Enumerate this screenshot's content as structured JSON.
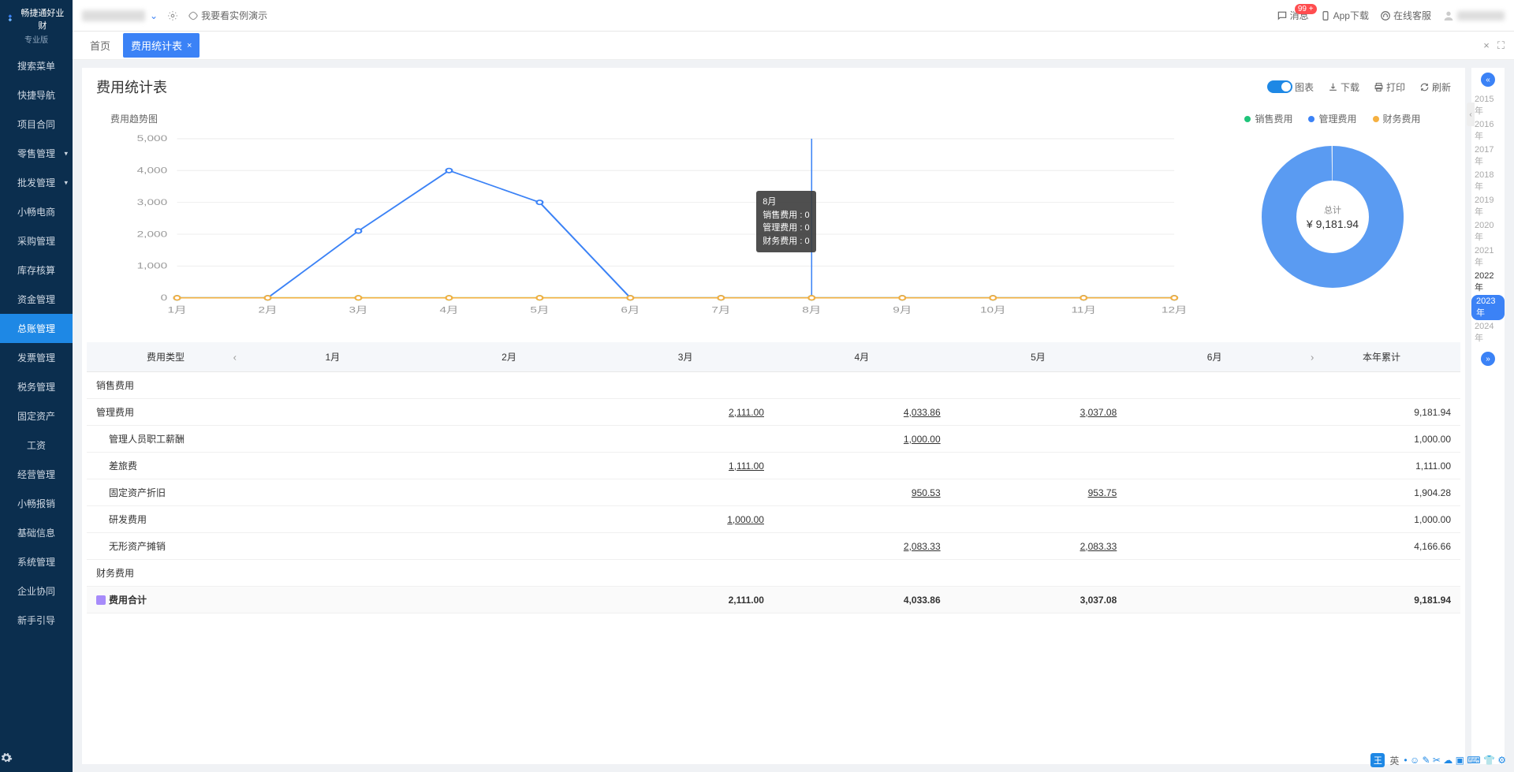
{
  "brand": {
    "name": "畅捷通好业财",
    "edition": "专业版"
  },
  "topbar": {
    "demo_label": "我要看实例演示",
    "msg": "消息",
    "msg_badge": "99 +",
    "app": "App下载",
    "service": "在线客服"
  },
  "sidebar": {
    "items": [
      {
        "label": "搜索菜单",
        "caret": false
      },
      {
        "label": "快捷导航",
        "caret": false
      },
      {
        "label": "项目合同",
        "caret": false
      },
      {
        "label": "零售管理",
        "caret": true
      },
      {
        "label": "批发管理",
        "caret": true
      },
      {
        "label": "小畅电商",
        "caret": false
      },
      {
        "label": "采购管理",
        "caret": false
      },
      {
        "label": "库存核算",
        "caret": false
      },
      {
        "label": "资金管理",
        "caret": false
      },
      {
        "label": "总账管理",
        "caret": false,
        "active": true
      },
      {
        "label": "发票管理",
        "caret": false
      },
      {
        "label": "税务管理",
        "caret": false
      },
      {
        "label": "固定资产",
        "caret": false
      },
      {
        "label": "工资",
        "caret": false
      },
      {
        "label": "经营管理",
        "caret": false
      },
      {
        "label": "小畅报销",
        "caret": false
      },
      {
        "label": "基础信息",
        "caret": false
      },
      {
        "label": "系统管理",
        "caret": false
      },
      {
        "label": "企业协同",
        "caret": false
      },
      {
        "label": "新手引导",
        "caret": false
      }
    ]
  },
  "tabs": {
    "home": "首页",
    "current": "费用统计表"
  },
  "page": {
    "title": "费用统计表",
    "actions": {
      "chart": "图表",
      "download": "下载",
      "print": "打印",
      "refresh": "刷新"
    }
  },
  "line_chart": {
    "title": "费用趋势图",
    "x_labels": [
      "1月",
      "2月",
      "3月",
      "4月",
      "5月",
      "6月",
      "7月",
      "8月",
      "9月",
      "10月",
      "11月",
      "12月"
    ],
    "y_ticks": [
      0,
      1000,
      2000,
      3000,
      4000,
      5000
    ],
    "ylim": [
      0,
      5000
    ],
    "series": [
      {
        "name": "销售费用",
        "color": "#1fc47a",
        "values": [
          0,
          0,
          0,
          0,
          0,
          0,
          0,
          0,
          0,
          0,
          0,
          0
        ]
      },
      {
        "name": "管理费用",
        "color": "#3b82f6",
        "values": [
          0,
          0,
          2100,
          4000,
          3000,
          0,
          0,
          0,
          0,
          0,
          0,
          0
        ]
      },
      {
        "name": "财务费用",
        "color": "#f5b041",
        "values": [
          0,
          0,
          0,
          0,
          0,
          0,
          0,
          0,
          0,
          0,
          0,
          0
        ]
      }
    ],
    "tooltip": {
      "month": "8月",
      "lines": [
        "销售费用 : 0",
        "管理费用 : 0",
        "财务费用 : 0"
      ],
      "x_index": 7
    },
    "grid_color": "#eeeeee",
    "axis_color": "#cccccc"
  },
  "legend": [
    {
      "label": "销售费用",
      "color": "#1fc47a"
    },
    {
      "label": "管理费用",
      "color": "#3b82f6"
    },
    {
      "label": "财务费用",
      "color": "#f5b041"
    }
  ],
  "donut": {
    "center_label": "总计",
    "center_value": "¥ 9,181.94",
    "color": "#5a9bf2",
    "bg": "#e8eef7"
  },
  "years": {
    "list": [
      "2015年",
      "2016年",
      "2017年",
      "2018年",
      "2019年",
      "2020年",
      "2021年",
      "2022年",
      "2023年",
      "2024年"
    ],
    "bold": "2022年",
    "active": "2023年"
  },
  "table": {
    "type_header": "费用类型",
    "months": [
      "1月",
      "2月",
      "3月",
      "4月",
      "5月",
      "6月"
    ],
    "total_header": "本年累计",
    "rows": [
      {
        "label": "销售费用",
        "cells": [
          "",
          "",
          "",
          "",
          "",
          ""
        ],
        "total": "",
        "link": [
          false,
          false,
          false,
          false,
          false,
          false
        ]
      },
      {
        "label": "管理费用",
        "cells": [
          "",
          "",
          "2,111.00",
          "4,033.86",
          "3,037.08",
          ""
        ],
        "total": "9,181.94",
        "link": [
          false,
          false,
          true,
          true,
          true,
          false
        ]
      },
      {
        "label": "管理人员职工薪酬",
        "sub": true,
        "cells": [
          "",
          "",
          "",
          "1,000.00",
          "",
          ""
        ],
        "total": "1,000.00",
        "link": [
          false,
          false,
          false,
          true,
          false,
          false
        ]
      },
      {
        "label": "差旅费",
        "sub": true,
        "cells": [
          "",
          "",
          "1,111.00",
          "",
          "",
          ""
        ],
        "total": "1,111.00",
        "link": [
          false,
          false,
          true,
          false,
          false,
          false
        ]
      },
      {
        "label": "固定资产折旧",
        "sub": true,
        "cells": [
          "",
          "",
          "",
          "950.53",
          "953.75",
          ""
        ],
        "total": "1,904.28",
        "link": [
          false,
          false,
          false,
          true,
          true,
          false
        ]
      },
      {
        "label": "研发费用",
        "sub": true,
        "cells": [
          "",
          "",
          "1,000.00",
          "",
          "",
          ""
        ],
        "total": "1,000.00",
        "link": [
          false,
          false,
          true,
          false,
          false,
          false
        ]
      },
      {
        "label": "无形资产摊销",
        "sub": true,
        "cells": [
          "",
          "",
          "",
          "2,083.33",
          "2,083.33",
          ""
        ],
        "total": "4,166.66",
        "link": [
          false,
          false,
          false,
          true,
          true,
          false
        ]
      },
      {
        "label": "财务费用",
        "cells": [
          "",
          "",
          "",
          "",
          "",
          ""
        ],
        "total": "",
        "link": [
          false,
          false,
          false,
          false,
          false,
          false
        ]
      },
      {
        "label": "费用合计",
        "total_row": true,
        "cells": [
          "",
          "",
          "2,111.00",
          "4,033.86",
          "3,037.08",
          ""
        ],
        "total": "9,181.94",
        "link": [
          false,
          false,
          false,
          false,
          false,
          false
        ]
      }
    ]
  }
}
